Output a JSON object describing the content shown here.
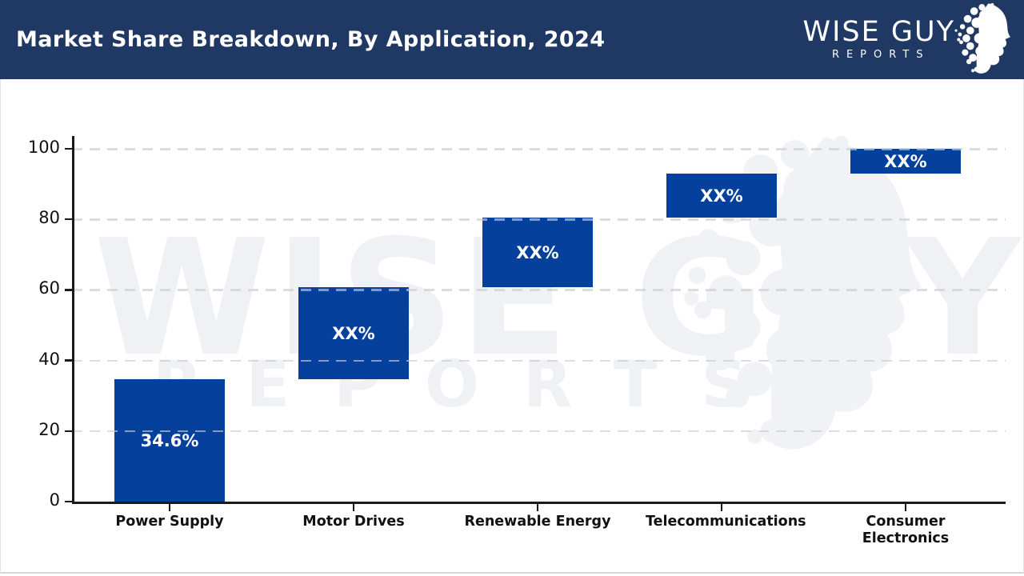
{
  "header": {
    "title": "Market Share Breakdown, By Application, 2024"
  },
  "logo": {
    "line1": "WISE GUY",
    "line2": "REPORTS"
  },
  "watermark": {
    "line1": "WISE GUY",
    "line2": "REPORTS"
  },
  "colors": {
    "header_bg": "#1f3864",
    "bar": "#05419c",
    "axis": "#1a1a1a",
    "gridline": "#d9d9d9",
    "bar_label_text": "#ffffff",
    "watermark": "#f0f1f4"
  },
  "chart_data": {
    "type": "bar",
    "subtype": "waterfall",
    "title": "Market Share Breakdown, By Application, 2024",
    "categories": [
      "Power Supply",
      "Motor Drives",
      "Renewable Energy",
      "Telecommunications",
      "Consumer Electronics"
    ],
    "segments": [
      {
        "category": "Power Supply",
        "start": 0,
        "end": 34.6,
        "label": "34.6%"
      },
      {
        "category": "Motor Drives",
        "start": 34.6,
        "end": 60.8,
        "label": "XX%"
      },
      {
        "category": "Renewable Energy",
        "start": 60.8,
        "end": 80.4,
        "label": "XX%"
      },
      {
        "category": "Telecommunications",
        "start": 80.4,
        "end": 92.9,
        "label": "XX%"
      },
      {
        "category": "Consumer Electronics",
        "start": 92.9,
        "end": 100,
        "label": "XX%"
      }
    ],
    "xlabel": "",
    "ylabel": "",
    "ylim": [
      0,
      100
    ],
    "yticks": [
      0,
      20,
      40,
      60,
      80,
      100
    ],
    "grid": "horizontal-dashed",
    "legend": null
  }
}
